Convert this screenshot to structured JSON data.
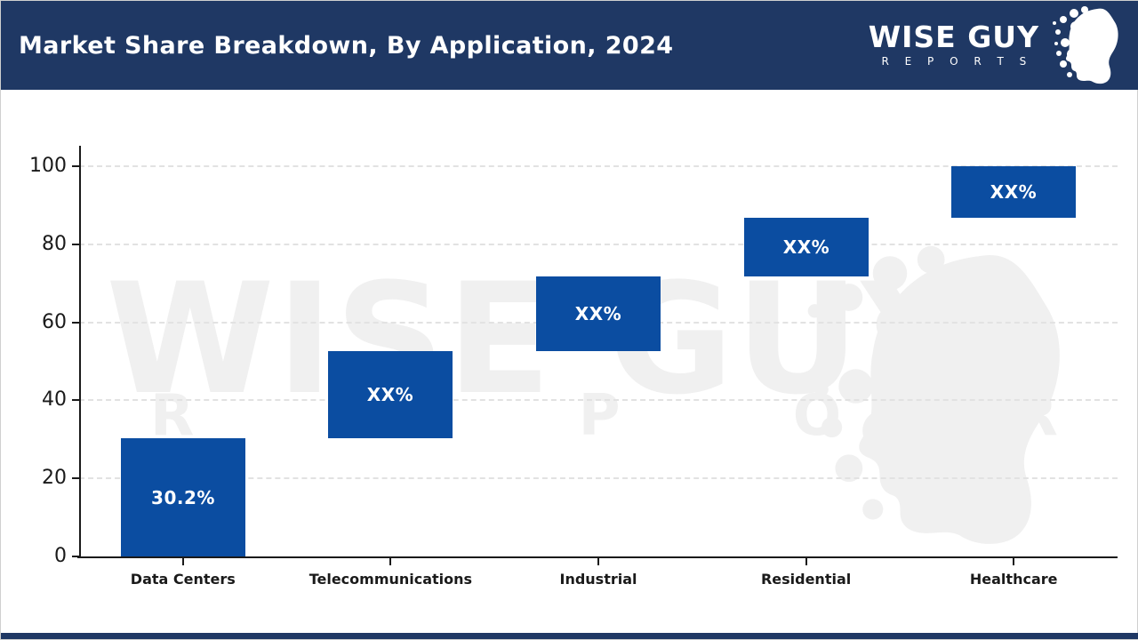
{
  "header": {
    "title": "Market Share Breakdown, By Application, 2024",
    "logo": {
      "line1": "WISE GUY",
      "line2": "R E P O R T S"
    },
    "bg_color": "#1f3864"
  },
  "watermark": {
    "line1": "WISE GUY",
    "line2": "R E P O R T S"
  },
  "chart_data": {
    "type": "bar",
    "variant": "waterfall",
    "title": "Market Share Breakdown, By Application, 2024",
    "categories": [
      "Data Centers",
      "Telecommunications",
      "Industrial",
      "Residential",
      "Healthcare"
    ],
    "bars": [
      {
        "category": "Data Centers",
        "start": 0,
        "end": 30.2,
        "value": 30.2,
        "label": "30.2%"
      },
      {
        "category": "Telecommunications",
        "start": 30.2,
        "end": 52.7,
        "value": 22.5,
        "label": "XX%"
      },
      {
        "category": "Industrial",
        "start": 52.7,
        "end": 71.8,
        "value": 19.1,
        "label": "XX%"
      },
      {
        "category": "Residential",
        "start": 71.8,
        "end": 86.8,
        "value": 15.0,
        "label": "XX%"
      },
      {
        "category": "Healthcare",
        "start": 86.8,
        "end": 100,
        "value": 13.2,
        "label": "XX%"
      }
    ],
    "ylim": [
      0,
      100
    ],
    "yticks": [
      0,
      20,
      40,
      60,
      80,
      100
    ],
    "grid": "horizontal-dashed",
    "legend": "none",
    "bar_color": "#0b4da1",
    "bar_label_color": "#ffffff",
    "axis_color": "#1a1a1a",
    "gridline_color": "#e2e2e2"
  }
}
